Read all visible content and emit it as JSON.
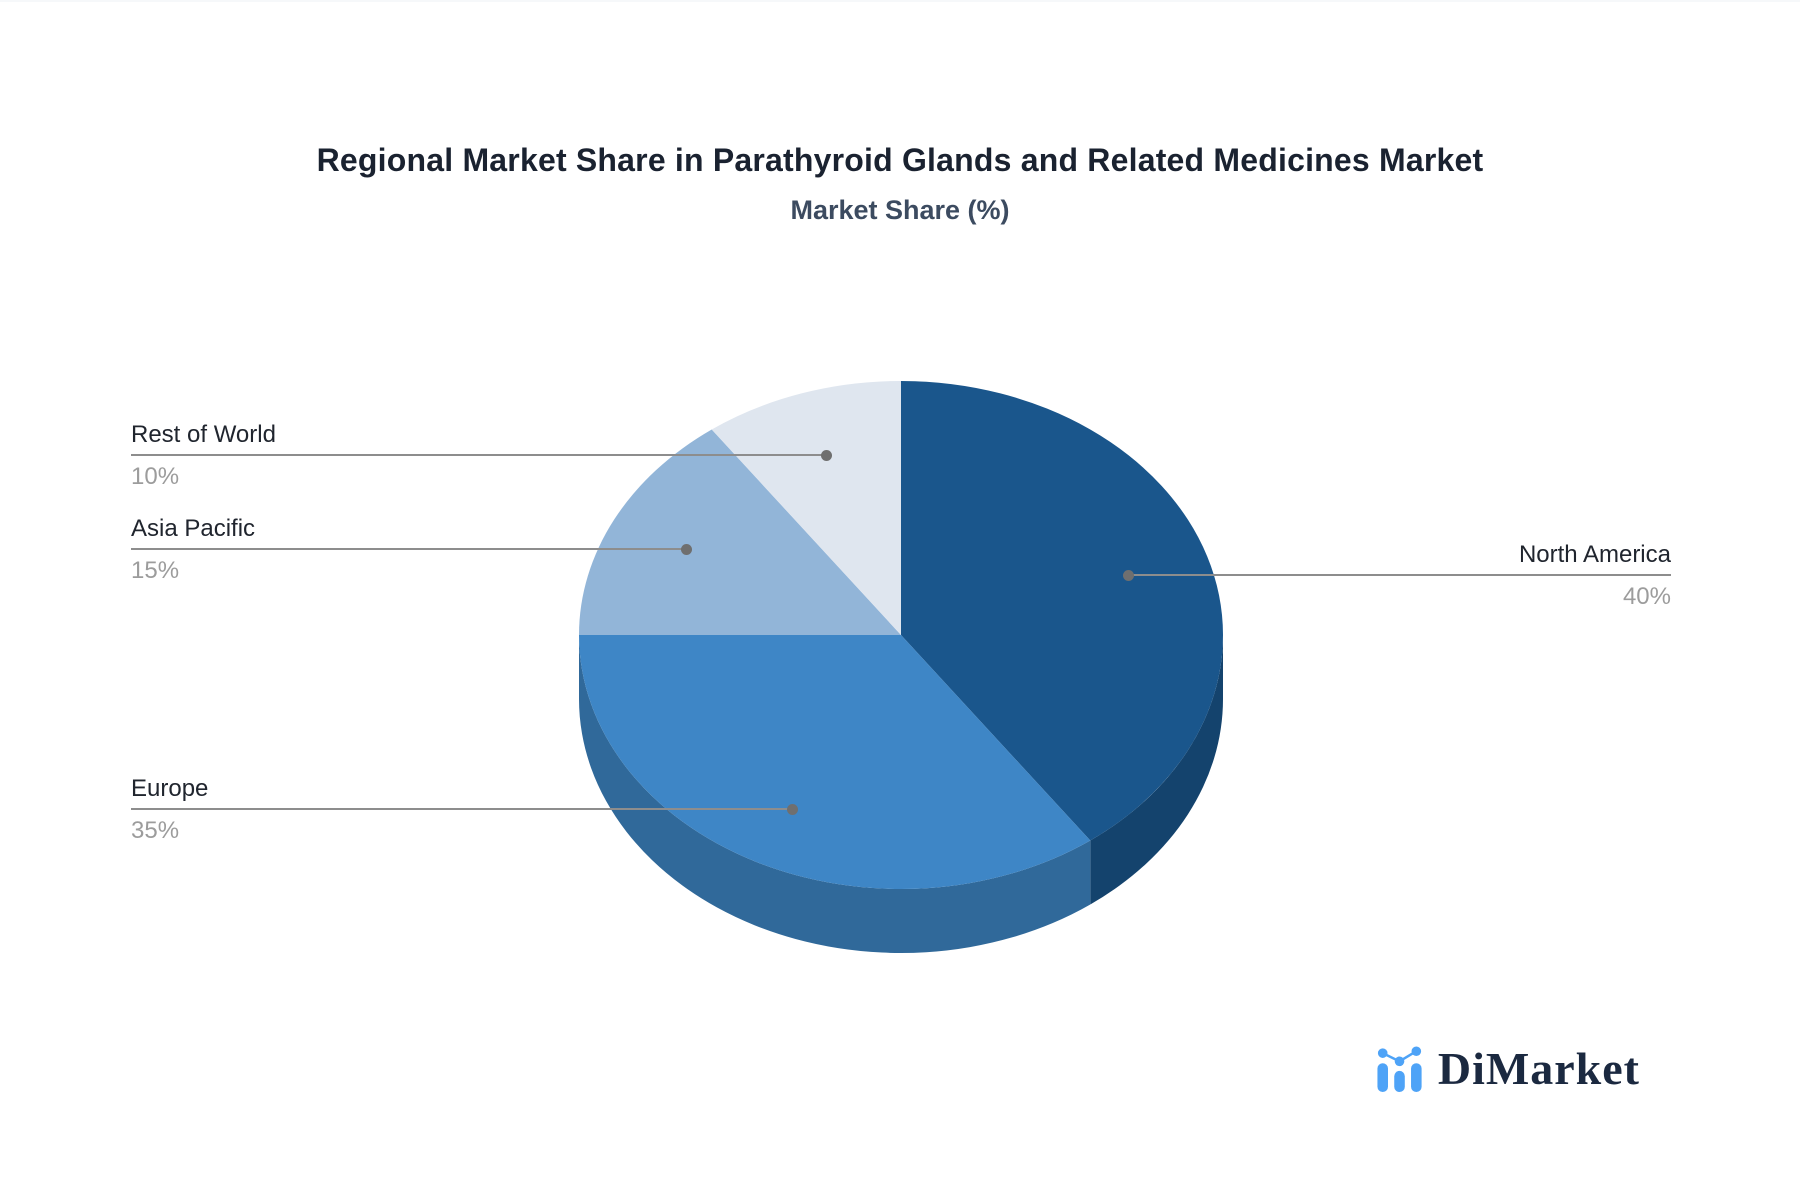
{
  "header": {
    "title": "Regional Market Share in Parathyroid Glands and Related Medicines Market",
    "subtitle": "Market Share (%)"
  },
  "chart_data": {
    "type": "pie",
    "style": "3d",
    "title": "Regional Market Share in Parathyroid Glands and Related Medicines Market",
    "subtitle": "Market Share (%)",
    "unit": "percent",
    "start_angle_deg": -90,
    "direction": "clockwise",
    "legend_position": "callout-labels",
    "series": [
      {
        "label": "North America",
        "value": 40,
        "pct_label": "40%",
        "color": "#1A568C"
      },
      {
        "label": "Europe",
        "value": 35,
        "pct_label": "35%",
        "color": "#3E86C6"
      },
      {
        "label": "Asia Pacific",
        "value": 15,
        "pct_label": "15%",
        "color": "#92B5D8"
      },
      {
        "label": "Rest of World",
        "value": 10,
        "pct_label": "10%",
        "color": "#DFE6EF"
      }
    ],
    "label_style": {
      "name_color": "#20252E",
      "pct_color": "#9C9C9C",
      "leader_line_color": "#8D8D8D",
      "leader_dot_color": "#6F6F6F"
    }
  },
  "brand": {
    "name": "DiMarket",
    "icon": "bar-line-chart-icon",
    "icon_color": "#4EA3F7",
    "text_color": "#1B2940"
  }
}
